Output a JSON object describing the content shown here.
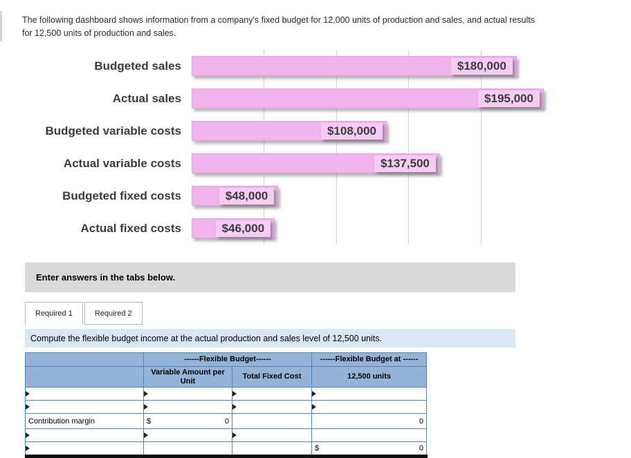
{
  "intro": {
    "line1": "The following dashboard shows information from a company's fixed budget for 12,000 units of production and sales, and actual results",
    "line2": "for 12,500 units of production and sales."
  },
  "chart_data": {
    "type": "bar",
    "orientation": "horizontal",
    "title": "",
    "categories": [
      "Budgeted sales",
      "Actual sales",
      "Budgeted variable costs",
      "Actual variable costs",
      "Budgeted fixed costs",
      "Actual fixed costs"
    ],
    "values": [
      180000,
      195000,
      108000,
      137500,
      48000,
      46000
    ],
    "value_labels": [
      "$180,000",
      "$195,000",
      "$108,000",
      "$137,500",
      "$48,000",
      "$46,000"
    ],
    "xlim": [
      0,
      200000
    ],
    "gridlines_every": 40000,
    "grid": true,
    "legend": false,
    "bar_color": "#f1b2ee"
  },
  "banner": {
    "text": "Enter answers in the tabs below."
  },
  "tabs": [
    {
      "label": "Required 1",
      "active": true
    },
    {
      "label": "Required 2",
      "active": false
    }
  ],
  "instruction": "Compute the flexible budget income at the actual production and sales level of 12,500 units.",
  "table": {
    "group_header_left": "------Flexible Budget------",
    "group_header_right": "------Flexible Budget at ------",
    "sub_header_col2": "Variable Amount per Unit",
    "sub_header_col3": "Total Fixed Cost",
    "sub_header_col4": "12,500 units",
    "rows": [
      {
        "label": "",
        "c2_prefix": "",
        "c2": "",
        "c3": "",
        "c4_prefix": "",
        "c4": ""
      },
      {
        "label": "",
        "c2_prefix": "",
        "c2": "",
        "c3": "",
        "c4_prefix": "",
        "c4": ""
      },
      {
        "label": "Contribution margin",
        "c2_prefix": "$",
        "c2": "0",
        "c3": "",
        "c4_prefix": "",
        "c4": "0"
      },
      {
        "label": "",
        "c2_prefix": "",
        "c2": "",
        "c3": "",
        "c4_prefix": "",
        "c4": ""
      },
      {
        "label": "",
        "c2_prefix": "",
        "c2": "",
        "c3": "",
        "c4_prefix": "$",
        "c4": "0"
      }
    ]
  },
  "colors": {
    "bar_pink": "#f1b2ee",
    "header_blue": "#95b3d7",
    "instruction_blue": "#d9e7f5",
    "banner_gray": "#d9d9d9",
    "table_border_blue": "#4f81bd"
  }
}
